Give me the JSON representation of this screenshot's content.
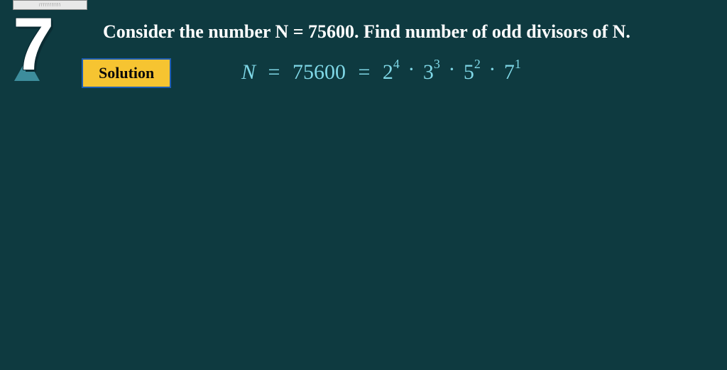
{
  "colors": {
    "slide_bg": "#0e3a40",
    "text_white": "#ffffff",
    "solution_bg": "#f6c431",
    "solution_border": "#1e5db3",
    "solution_text": "#0a0a0a",
    "equation_color": "#7fd7e6",
    "badge_accent": "#4aa3b3"
  },
  "problem_number": "7",
  "question": "Consider the number N = 75600. Find number of odd divisors of N.",
  "solution_label": "Solution",
  "equation": {
    "lhs_var": "N",
    "eq1": "=",
    "value": "75600",
    "eq2": "=",
    "factors": [
      {
        "base": "2",
        "exp": "4"
      },
      {
        "base": "3",
        "exp": "3"
      },
      {
        "base": "5",
        "exp": "2"
      },
      {
        "base": "7",
        "exp": "1"
      }
    ]
  }
}
